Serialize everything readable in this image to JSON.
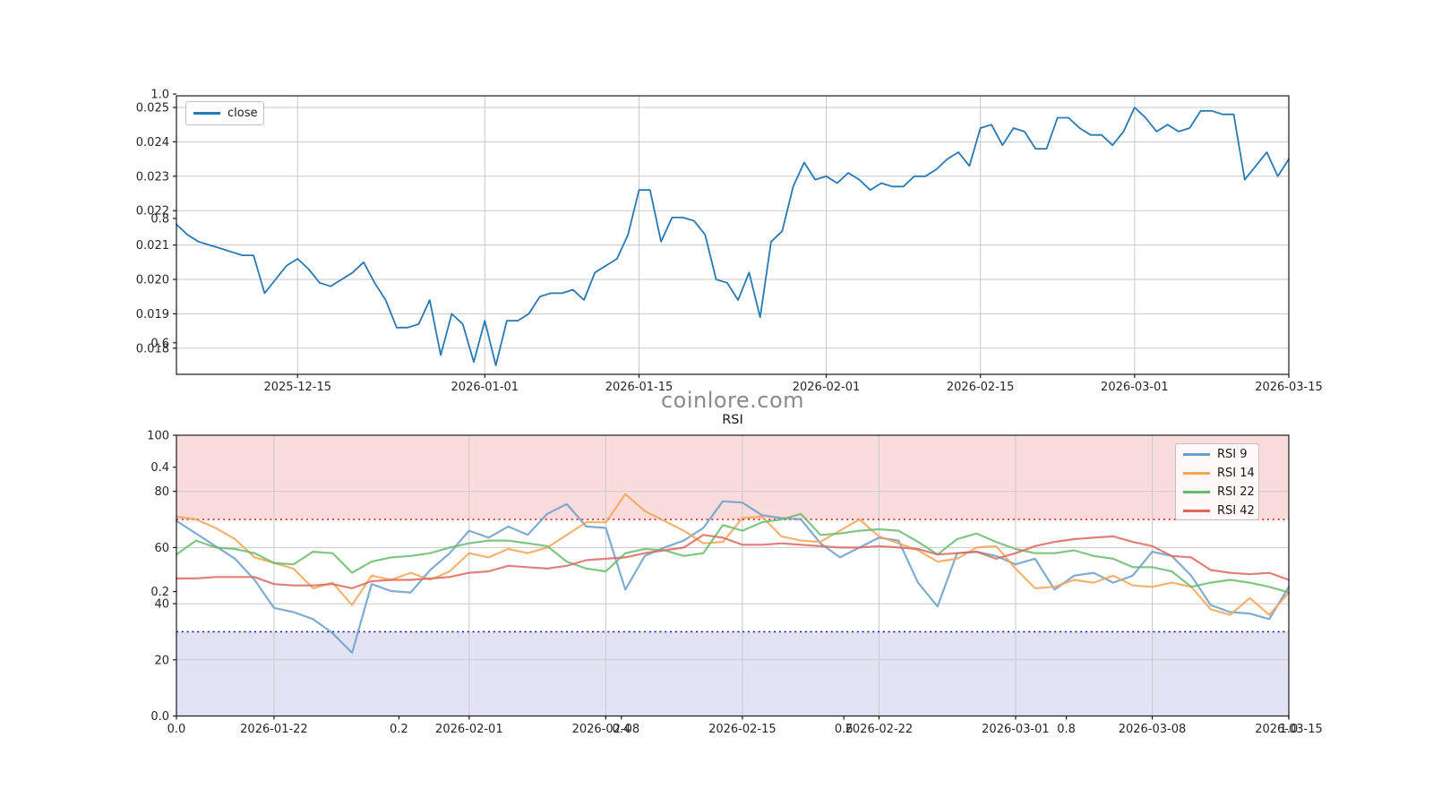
{
  "watermark": {
    "text": "coinlore.com"
  },
  "colors": {
    "close": "#2878b4",
    "rsi9": "#6b9ec9",
    "rsi14": "#f6a456",
    "rsi22": "#68bb6e",
    "rsi42": "#dc6960",
    "overbought_band": "#fadcdc",
    "oversold_band": "#e3e3f6",
    "overbought_line": "#e02020",
    "oversold_line": "#1515cc",
    "grid": "#c9c9c9",
    "spine": "#1a1a1a",
    "text": "#262626",
    "watermark": "#8a8a8a"
  },
  "chart_data": [
    {
      "type": "line",
      "title": "",
      "x_start": "2025-12-04",
      "x_end": "2026-03-15",
      "x_interval": "daily",
      "x_tick_labels": [
        "2025-12-15",
        "2026-01-01",
        "2026-01-15",
        "2026-02-01",
        "2026-02-15",
        "2026-03-01",
        "2026-03-15"
      ],
      "x_tick_day_index": [
        11,
        28,
        42,
        59,
        73,
        87,
        101
      ],
      "y_tick_labels": [
        "0.025",
        "0.024",
        "0.023",
        "0.022",
        "0.021",
        "0.020",
        "0.019",
        "0.018"
      ],
      "y_ticks": [
        0.025,
        0.024,
        0.023,
        0.022,
        0.021,
        0.02,
        0.019,
        0.018
      ],
      "ylim": [
        0.01724,
        0.02534
      ],
      "grid": true,
      "legend_position": "upper-left",
      "series": [
        {
          "name": "close",
          "color_key": "close",
          "values": [
            0.0216,
            0.0213,
            0.0211,
            0.021,
            0.0209,
            0.0208,
            0.0207,
            0.0207,
            0.0196,
            0.02,
            0.0204,
            0.0206,
            0.0203,
            0.0199,
            0.0198,
            0.02,
            0.0202,
            0.0205,
            0.0199,
            0.0194,
            0.0186,
            0.0186,
            0.0187,
            0.0194,
            0.0178,
            0.019,
            0.0187,
            0.0176,
            0.0188,
            0.0175,
            0.0188,
            0.0188,
            0.019,
            0.0195,
            0.0196,
            0.0196,
            0.0197,
            0.0194,
            0.0202,
            0.0204,
            0.0206,
            0.0213,
            0.0226,
            0.0226,
            0.0211,
            0.0218,
            0.0218,
            0.0217,
            0.0213,
            0.02,
            0.0199,
            0.0194,
            0.0202,
            0.0189,
            0.0211,
            0.0214,
            0.0227,
            0.0234,
            0.0229,
            0.023,
            0.0228,
            0.0231,
            0.0229,
            0.0226,
            0.0228,
            0.0227,
            0.0227,
            0.023,
            0.023,
            0.0232,
            0.0235,
            0.0237,
            0.0233,
            0.0244,
            0.0245,
            0.0239,
            0.0244,
            0.0243,
            0.0238,
            0.0238,
            0.0247,
            0.0247,
            0.0244,
            0.0242,
            0.0242,
            0.0239,
            0.0243,
            0.025,
            0.0247,
            0.0243,
            0.0245,
            0.0243,
            0.0244,
            0.0249,
            0.0249,
            0.0248,
            0.0248,
            0.0229,
            0.0233,
            0.0237,
            0.023,
            0.0235
          ]
        }
      ]
    },
    {
      "type": "line",
      "title": "RSI",
      "x_start": "2026-01-17",
      "x_end": "2026-03-15",
      "x_interval": "daily",
      "x_tick_labels": [
        "2026-01-22",
        "2026-02-01",
        "2026-02-08",
        "2026-02-15",
        "2026-02-22",
        "2026-03-01",
        "2026-03-08",
        "2026-03-15"
      ],
      "x_tick_day_index": [
        5,
        15,
        22,
        29,
        36,
        43,
        50,
        57
      ],
      "y_tick_labels": [
        "100",
        "80",
        "60",
        "40",
        "20"
      ],
      "y_ticks": [
        100,
        80,
        60,
        40,
        20
      ],
      "ylim": [
        0,
        100
      ],
      "grid": true,
      "overbought_level": 70,
      "oversold_level": 30,
      "bands": [
        {
          "from": 70,
          "to": 100,
          "color_key": "overbought_band"
        },
        {
          "from": 0,
          "to": 30,
          "color_key": "oversold_band"
        }
      ],
      "legend_position": "upper-right",
      "series": [
        {
          "name": "RSI 9",
          "color_key": "rsi9",
          "values": [
            69.5,
            65,
            60.5,
            56,
            48.5,
            38.5,
            37,
            34.5,
            29.5,
            22.5,
            47,
            44.5,
            44,
            52,
            58,
            66,
            63.5,
            67.5,
            64.5,
            72,
            75.5,
            67.5,
            67,
            45,
            57,
            60,
            62.5,
            67,
            76.5,
            76,
            71.5,
            70.5,
            70,
            61.5,
            56.5,
            60,
            63.5,
            62.5,
            47.5,
            39,
            58,
            58.5,
            57,
            54,
            56,
            45,
            50,
            51,
            47.5,
            50,
            58.5,
            57,
            50,
            39.5,
            37,
            36.5,
            34.5,
            46
          ]
        },
        {
          "name": "RSI 14",
          "color_key": "rsi14",
          "values": [
            71,
            70,
            67,
            63,
            56.5,
            54.5,
            52.5,
            45.5,
            47.5,
            39.5,
            50,
            48.5,
            51,
            48.5,
            51.5,
            58,
            56.5,
            59.5,
            58,
            60,
            64.5,
            69,
            69,
            79,
            73,
            69.5,
            66,
            61.5,
            62,
            70.5,
            71,
            64,
            62.5,
            62,
            66,
            70,
            64,
            61.5,
            59,
            55,
            56,
            60,
            60.5,
            52.5,
            45.5,
            46,
            48.5,
            47.5,
            50,
            46.5,
            46,
            47.5,
            46,
            38,
            36,
            42,
            36,
            44
          ]
        },
        {
          "name": "RSI 22",
          "color_key": "rsi22",
          "values": [
            57.5,
            62.5,
            60,
            59.5,
            58,
            54.5,
            54,
            58.5,
            58,
            51,
            55,
            56.5,
            57,
            58,
            60,
            61.5,
            62.5,
            62.5,
            61.5,
            60.5,
            55,
            52.5,
            51.5,
            58,
            59.5,
            59,
            57,
            58,
            68,
            66,
            69,
            70,
            72,
            64.5,
            65,
            66,
            66.5,
            66,
            62,
            57.5,
            63,
            65,
            62,
            59.5,
            58,
            58,
            59,
            57,
            56,
            53,
            53,
            51.5,
            46,
            47.5,
            48.5,
            47.5,
            46,
            44
          ]
        },
        {
          "name": "RSI 42",
          "color_key": "rsi42",
          "values": [
            49,
            49,
            49.5,
            49.5,
            49.5,
            47,
            46.5,
            46.5,
            47,
            45.5,
            48,
            48.5,
            48.5,
            49,
            49.5,
            51,
            51.5,
            53.5,
            53,
            52.5,
            53.5,
            55.5,
            56,
            56.5,
            58,
            59,
            60,
            64.5,
            63.5,
            61,
            61,
            61.5,
            61,
            60.5,
            60,
            60,
            60.5,
            60,
            59.5,
            57.5,
            58,
            58.5,
            56,
            58,
            60.5,
            62,
            63,
            63.5,
            64,
            62,
            60.5,
            57,
            56.5,
            52,
            51,
            50.5,
            51,
            48.5
          ]
        }
      ]
    }
  ],
  "overlay_axis": {
    "left_tick_labels": [
      "1.0",
      "0.8",
      "0.6",
      "0.4",
      "0.2",
      "0.0"
    ],
    "bottom_tick_labels": [
      "0.0",
      "0.2",
      "0.4",
      "0.6",
      "0.8",
      "1.0"
    ]
  }
}
